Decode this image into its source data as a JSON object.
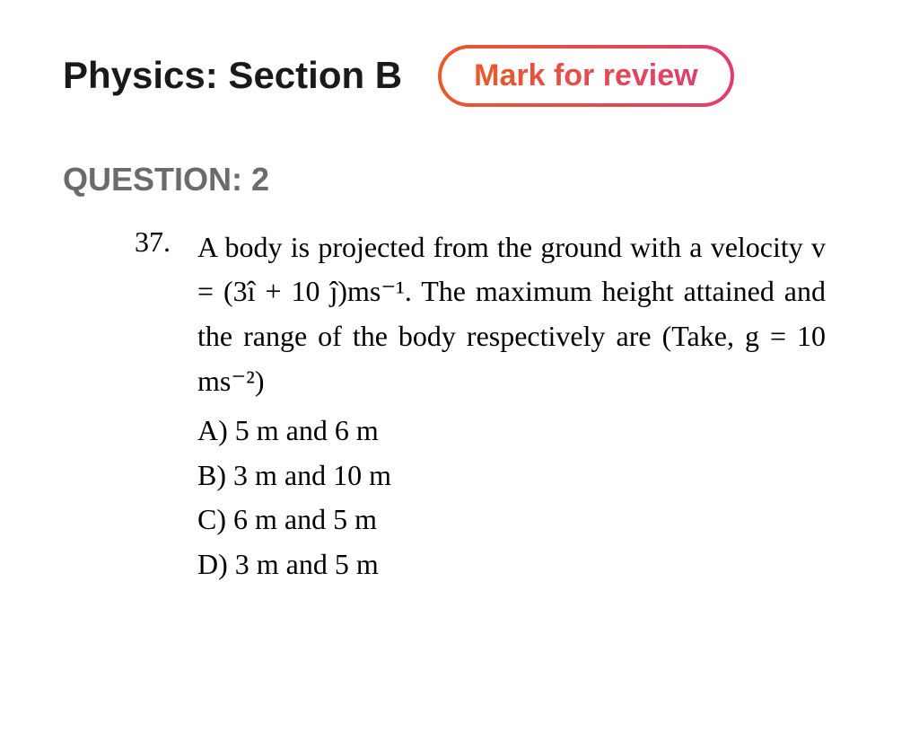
{
  "header": {
    "section_title": "Physics: Section B",
    "review_label": "Mark for review"
  },
  "question": {
    "label": "QUESTION: 2",
    "number": "37.",
    "text": "A body is projected from the ground with a velocity v = (3î + 10 ĵ)ms⁻¹. The maximum height attained and the range of the body respectively are (Take, g = 10 ms⁻²)",
    "options": [
      {
        "label": "A)",
        "text": "5 m and 6 m"
      },
      {
        "label": "B)",
        "text": "3 m and 10 m"
      },
      {
        "label": "C)",
        "text": "6 m and 5 m"
      },
      {
        "label": "D)",
        "text": "3 m and 5 m"
      }
    ]
  },
  "style": {
    "title_color": "#1a1a1a",
    "label_color": "#6b6b6b",
    "gradient_start": "#e95a2b",
    "gradient_end": "#e13d6f",
    "body_font": "Georgia",
    "ui_font": "Arial",
    "title_fontsize": 42,
    "label_fontsize": 36,
    "body_fontsize": 32,
    "background": "#ffffff"
  }
}
